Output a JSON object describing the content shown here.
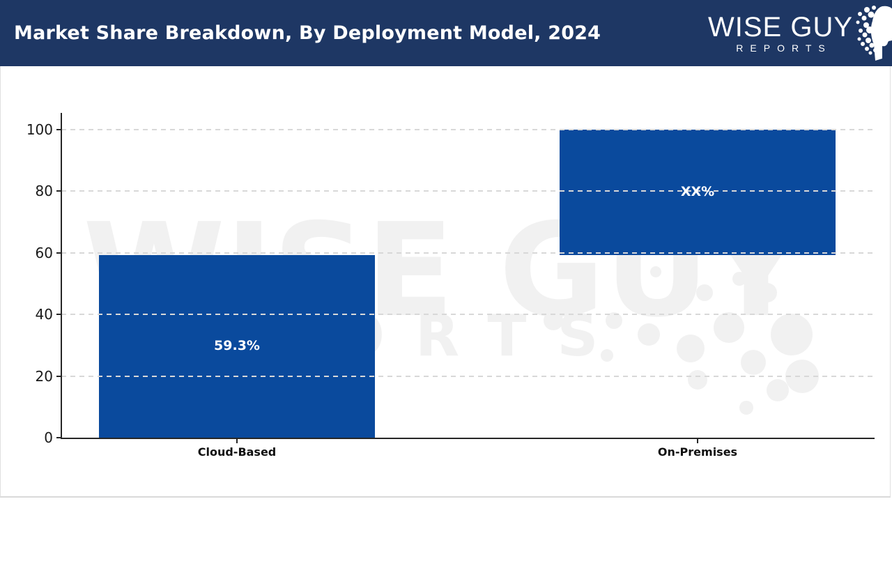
{
  "header": {
    "title": "Market Share Breakdown, By Deployment Model, 2024",
    "logo": {
      "line1": "WISE GUY",
      "line2": "REPORTS"
    }
  },
  "watermark": {
    "line1": "WISE GUY",
    "line2": "REPORTS"
  },
  "colors": {
    "header_bg": "#1E3764",
    "bar": "#0A4A9D",
    "grid": "#D8D8D8",
    "axis": "#262626",
    "watermark": "#F1F1F1",
    "bar_label_text": "#FFFFFF"
  },
  "chart_data": {
    "type": "bar",
    "subtype": "floating-range-bars",
    "title": "Market Share Breakdown, By Deployment Model, 2024",
    "categories": [
      "Cloud-Based",
      "On-Premises"
    ],
    "bars": [
      {
        "category": "Cloud-Based",
        "from": 0,
        "to": 59.3,
        "label": "59.3%"
      },
      {
        "category": "On-Premises",
        "from": 59.3,
        "to": 100,
        "label": "XX%"
      }
    ],
    "yticks": [
      0,
      20,
      40,
      60,
      80,
      100
    ],
    "ylim": [
      0,
      105
    ],
    "xlabel": "",
    "ylabel": "",
    "grid": "horizontal dashed, drawn over bars",
    "legend": "none"
  }
}
